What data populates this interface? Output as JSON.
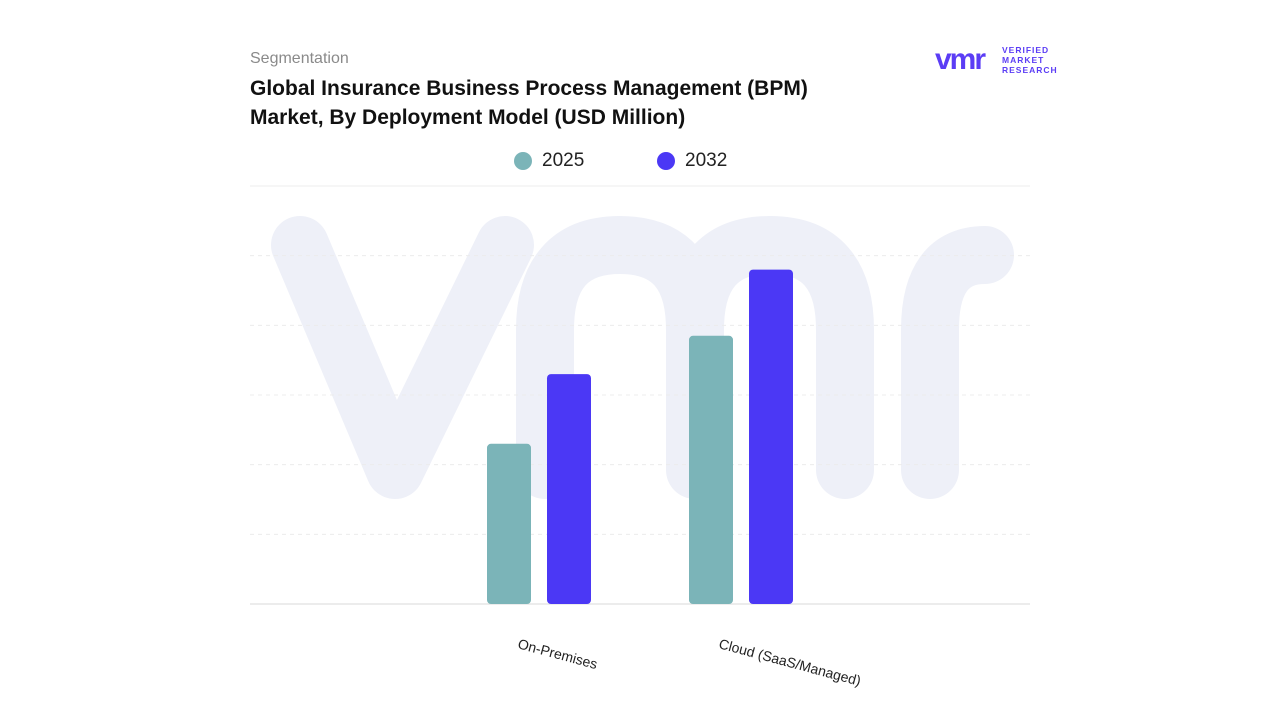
{
  "header": {
    "segment_label": "Segmentation",
    "title_line1": "Global Insurance Business Process Management (BPM)",
    "title_line2": "Market, By Deployment Model (USD Million)"
  },
  "logo": {
    "mark": "vmr",
    "line1": "VERIFIED",
    "line2": "MARKET",
    "line3": "RESEARCH",
    "color": "#5b3df5"
  },
  "chart_data": {
    "type": "bar",
    "categories": [
      "On-Premises",
      "Cloud (SaaS/Managed)"
    ],
    "series": [
      {
        "name": "2025",
        "color": "#7bb4b8",
        "values": [
          46,
          77
        ]
      },
      {
        "name": "2032",
        "color": "#4b38f5",
        "values": [
          66,
          96
        ]
      }
    ],
    "ylim": [
      0,
      120
    ],
    "grid": true,
    "legend": "top-center",
    "xlabel": "",
    "ylabel": ""
  }
}
